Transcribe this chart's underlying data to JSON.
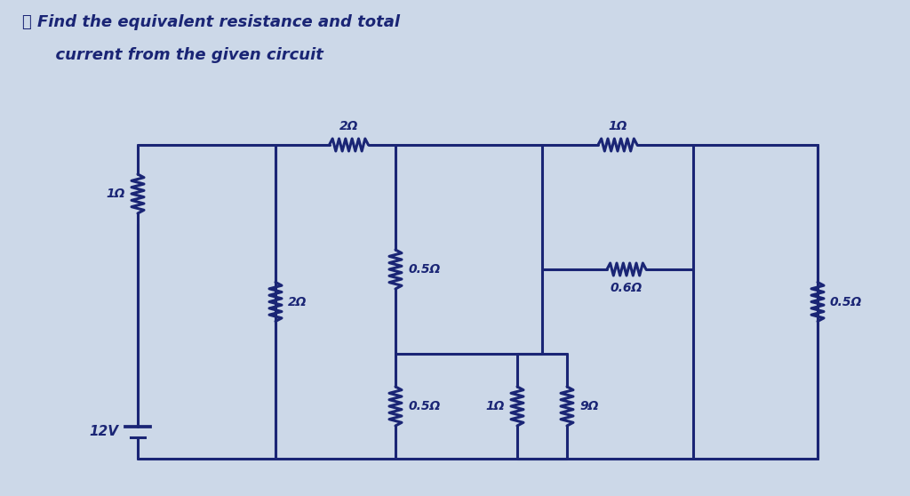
{
  "bg_color": "#ccd8e8",
  "ink_color": "#1a2575",
  "voltage": "12V",
  "r1": "1Ω",
  "r2": "2Ω",
  "r3": "0.5Ω",
  "r4": "0.5Ω",
  "r5": "2Ω",
  "r6": "1Ω",
  "r7": "9Ω",
  "r8": "0.6Ω",
  "r9": "1Ω",
  "r10": "0.5Ω",
  "title1": "ⓘ Find the equivalent resistance and total",
  "title2": "      current from the given circuit"
}
